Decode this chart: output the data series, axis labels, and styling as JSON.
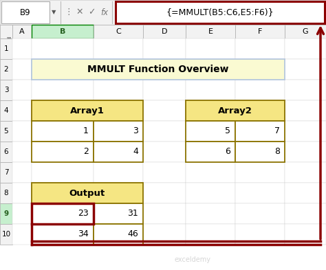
{
  "title": "MMULT Function Overview",
  "formula_bar_cell": "B9",
  "formula_bar_text": "{=MMULT(B5:C6,E5:F6)}",
  "col_headers": [
    "A",
    "B",
    "C",
    "D",
    "E",
    "F",
    "G"
  ],
  "row_headers": [
    "1",
    "2",
    "3",
    "4",
    "5",
    "6",
    "7",
    "8",
    "9",
    "10"
  ],
  "array1_header": "Array1",
  "array1_data": [
    [
      1,
      3
    ],
    [
      2,
      4
    ]
  ],
  "array2_header": "Array2",
  "array2_data": [
    [
      5,
      7
    ],
    [
      6,
      8
    ]
  ],
  "output_header": "Output",
  "output_data": [
    [
      23,
      31
    ],
    [
      34,
      46
    ]
  ],
  "header_fill": "#F5E683",
  "cell_fill": "#FFFFFF",
  "title_bg": "#FAFAD2",
  "title_border": "#B0C4DE",
  "dark_red": "#8B0000",
  "selected_col_fill": "#C6EFCE",
  "selected_col_text": "#276221",
  "formula_bg": "#FFFFFF",
  "formula_bar_bg": "#F2F2F2",
  "col_header_bg": "#F2F2F2",
  "row_header_bg": "#F2F2F2",
  "cell_border": "#D0D0D0",
  "table_border": "#8B7300",
  "watermark": "exceldemy"
}
